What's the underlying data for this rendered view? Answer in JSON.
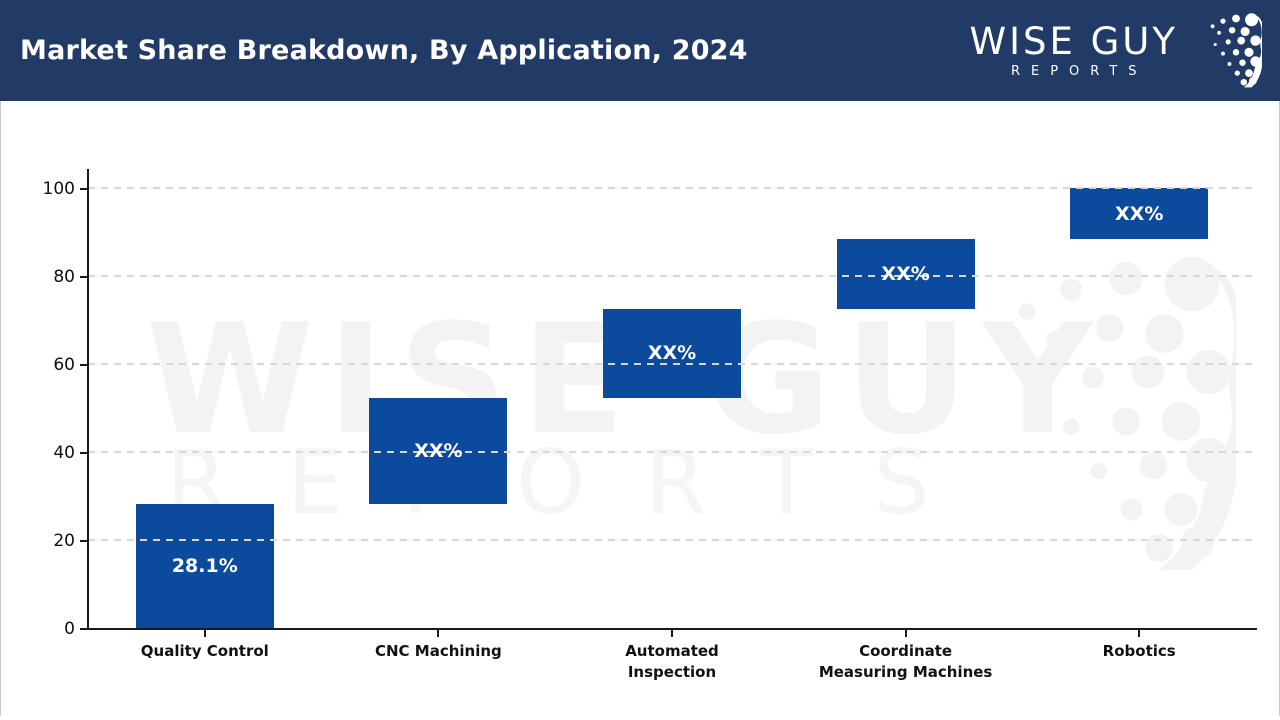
{
  "header": {
    "title": "Market Share Breakdown, By Application, 2024",
    "logo": {
      "line1": "WISE GUY",
      "line2": "REPORTS"
    }
  },
  "watermark": {
    "line1": "WISE GUY",
    "line2": "REPORTS"
  },
  "colors": {
    "header_bg": "#213A66",
    "bar": "#0C4A9E",
    "grid": "#d8d8d8",
    "axis": "#1a1a1a",
    "bar_label": "#ffffff",
    "watermark": "#f3f3f3"
  },
  "chart_data": {
    "type": "bar",
    "subtype": "waterfall",
    "title": "Market Share Breakdown, By Application, 2024",
    "xlabel": "",
    "ylabel": "",
    "ylim": [
      0,
      106
    ],
    "yticks": [
      0,
      20,
      40,
      60,
      80,
      100
    ],
    "grid": "dashed horizontal",
    "legend": "none",
    "categories": [
      "Quality Control",
      "CNC Machining",
      "Automated\nInspection",
      "Coordinate\nMeasuring Machines",
      "Robotics"
    ],
    "points": [
      {
        "category": "Quality Control",
        "start": 0,
        "end": 28.1,
        "label": "28.1%"
      },
      {
        "category": "CNC Machining",
        "start": 28.1,
        "end": 52.3,
        "label": "XX%"
      },
      {
        "category": "Automated\nInspection",
        "start": 52.3,
        "end": 72.5,
        "label": "XX%"
      },
      {
        "category": "Coordinate\nMeasuring Machines",
        "start": 72.5,
        "end": 88.4,
        "label": "XX%"
      },
      {
        "category": "Robotics",
        "start": 88.4,
        "end": 100,
        "label": "XX%"
      }
    ]
  }
}
